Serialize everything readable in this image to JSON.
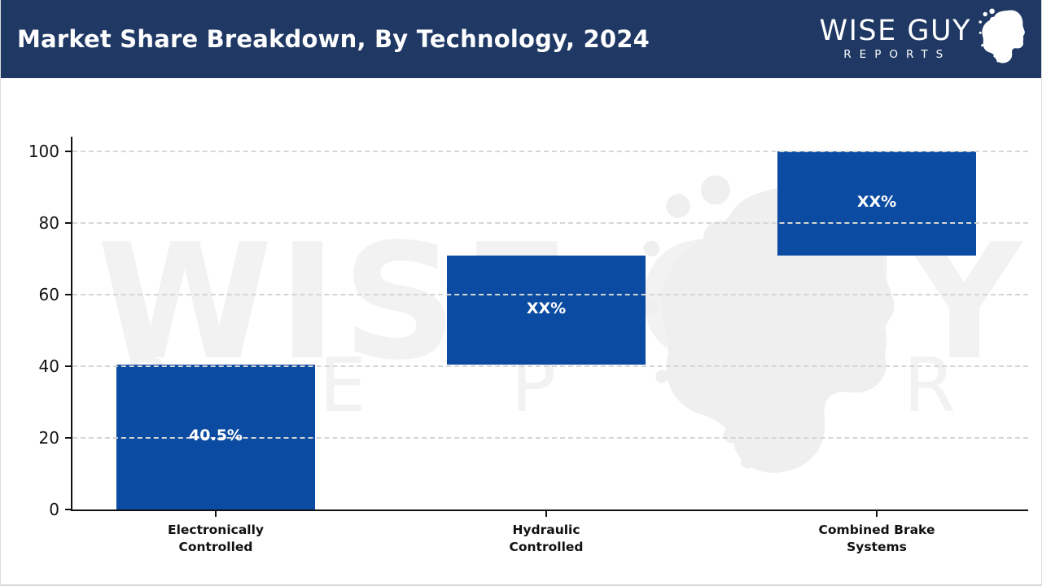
{
  "header": {
    "title": "Market Share Breakdown, By Technology, 2024",
    "logo": {
      "line1": "WISE GUY",
      "line2": "REPORTS"
    },
    "bg_color": "#1f3864"
  },
  "watermark": {
    "line1": "WISE GUY",
    "line2": "R E P O R T S"
  },
  "chart_data": {
    "type": "bar",
    "subtype": "floating-segment-waterfall",
    "title": "Market Share Breakdown, By Technology, 2024",
    "categories": [
      "Electronically Controlled",
      "Hydraulic Controlled",
      "Combined Brake Systems"
    ],
    "category_lines": [
      [
        "Electronically",
        "Controlled"
      ],
      [
        "Hydraulic",
        "Controlled"
      ],
      [
        "Combined Brake",
        "Systems"
      ]
    ],
    "segments": [
      {
        "category": "Electronically Controlled",
        "from": 0,
        "to": 40.5,
        "label": "40.5%"
      },
      {
        "category": "Hydraulic Controlled",
        "from": 40.5,
        "to": 71,
        "label": "XX%"
      },
      {
        "category": "Combined Brake Systems",
        "from": 71,
        "to": 100,
        "label": "XX%"
      }
    ],
    "bar_color": "#0b4ba1",
    "label_color": "#ffffff",
    "xlabel": "",
    "ylabel": "",
    "ylim": [
      0,
      100
    ],
    "yticks": [
      0,
      20,
      40,
      60,
      80,
      100
    ],
    "grid": "horizontal-dashed",
    "legend": "none"
  }
}
